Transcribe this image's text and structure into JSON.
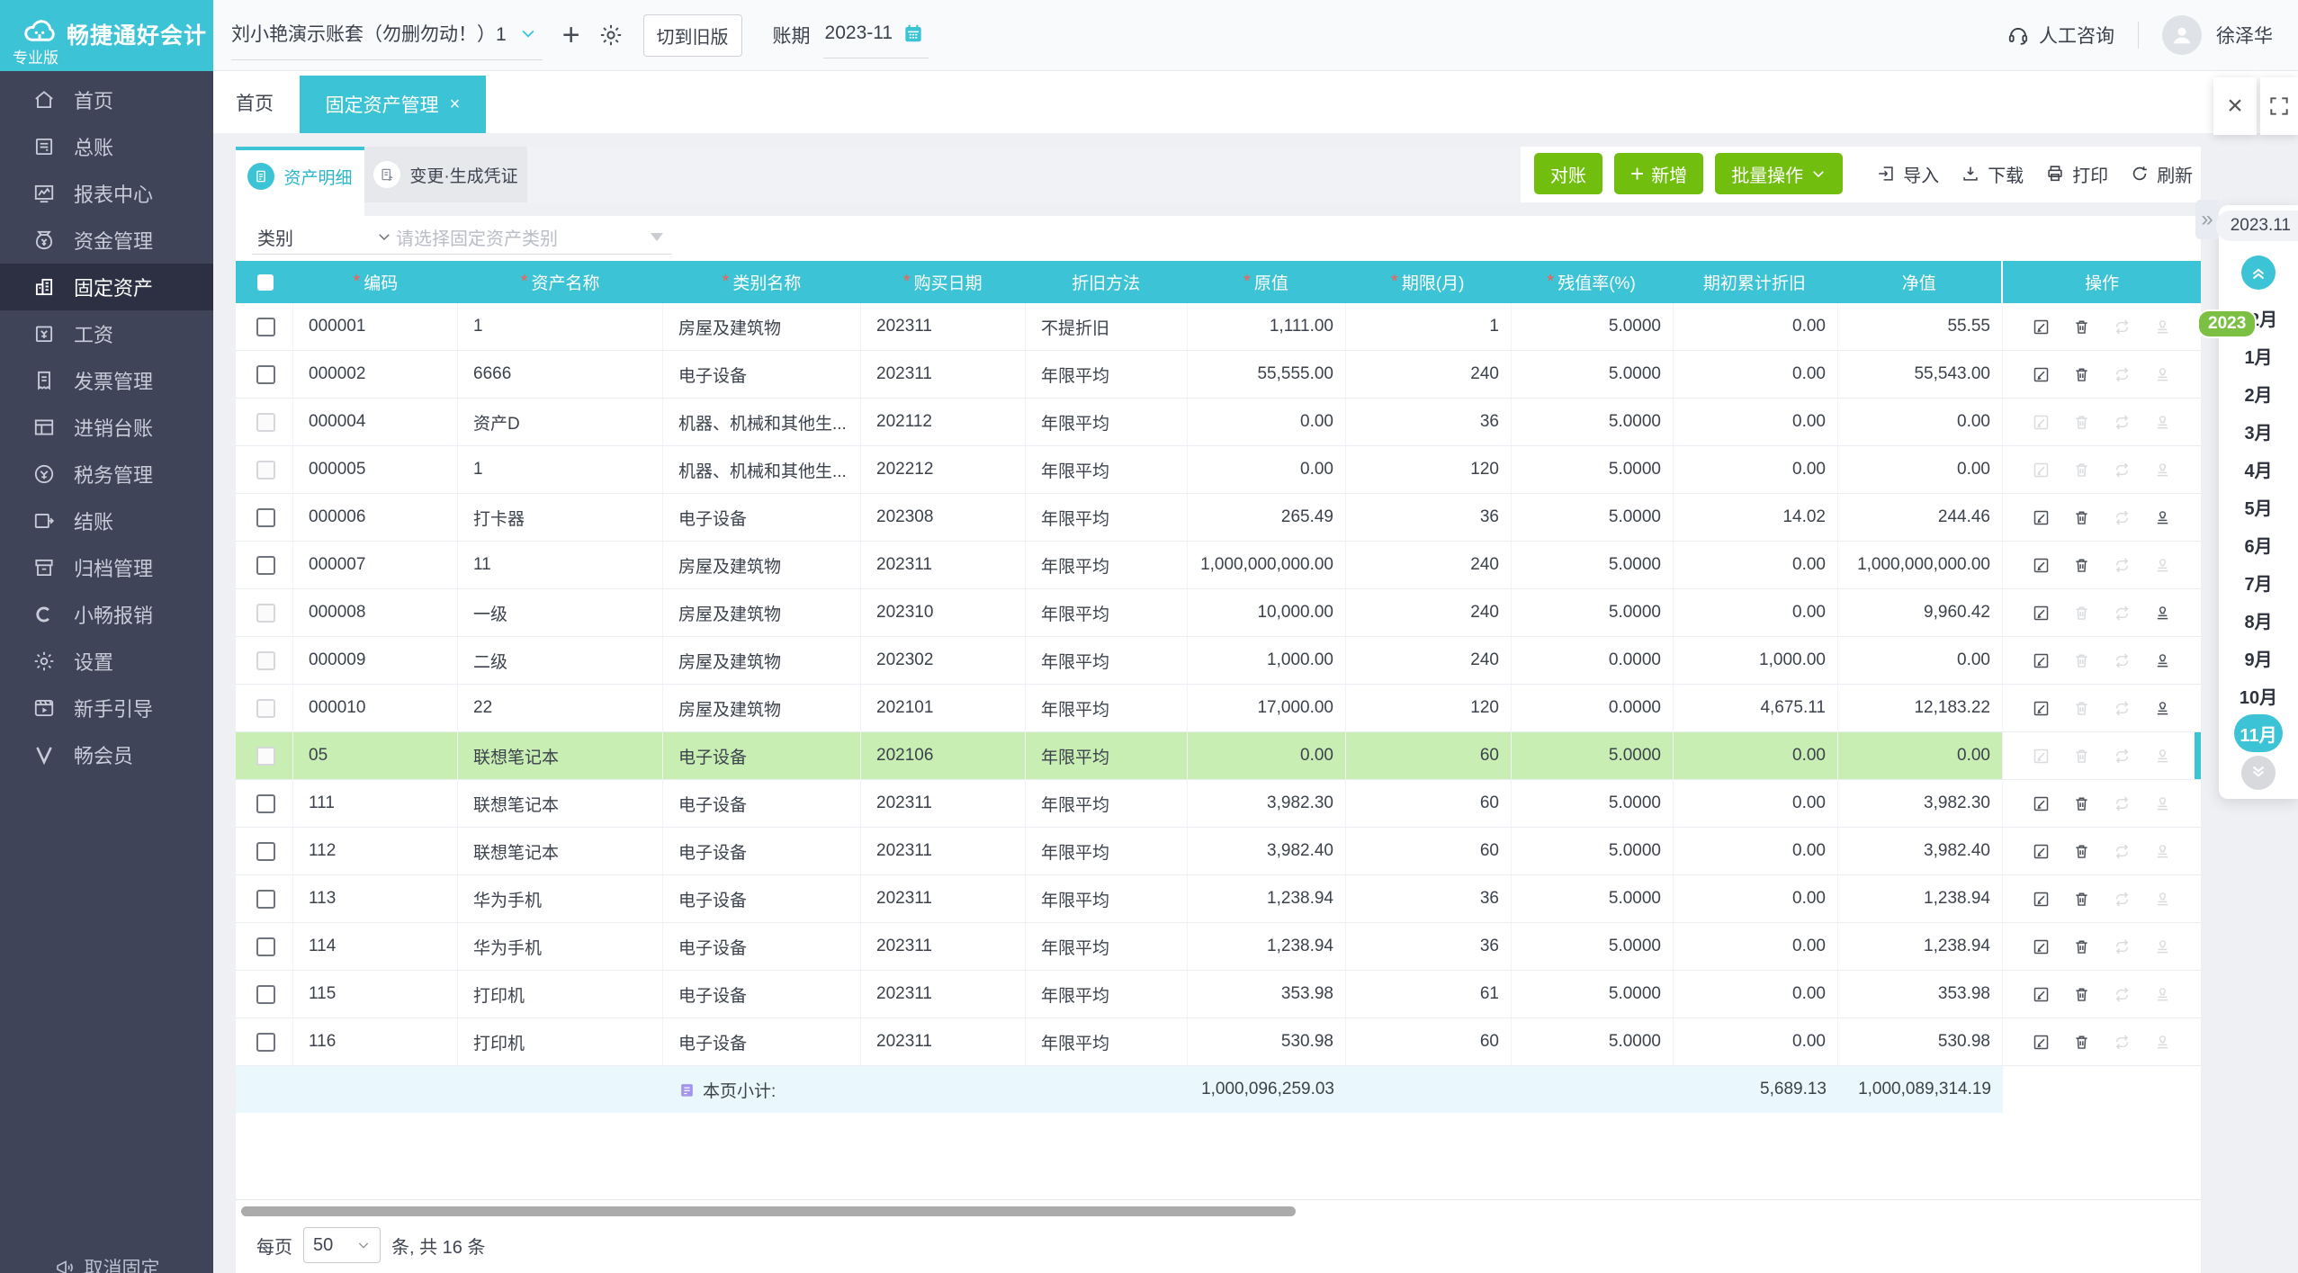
{
  "colors": {
    "primary_teal": "#3cc3d5",
    "button_green": "#72be0e",
    "row_highlight_green": "#c9eeb4",
    "year_badge_green": "#7cc043",
    "sidebar_bg": "#3f4458",
    "required_red": "#ff5a4e",
    "subtotal_bg": "#eaf7fc"
  },
  "icons": {
    "close": "×",
    "collapse": "»",
    "plus": "+",
    "caret": "∨"
  },
  "brand": {
    "name": "畅捷通好会计",
    "edition": "专业版"
  },
  "topbar": {
    "account": "刘小艳演示账套（勿删勿动！）1",
    "switch_old_label": "切到旧版",
    "period_label": "账期",
    "period_value": "2023-11",
    "support_label": "人工咨询",
    "user_name": "徐泽华"
  },
  "tabs": {
    "home_label": "首页",
    "active_label": "固定资产管理"
  },
  "sidebar": {
    "items": [
      {
        "label": "首页",
        "icon": "home-icon",
        "active": false
      },
      {
        "label": "总账",
        "icon": "ledger-icon",
        "active": false
      },
      {
        "label": "报表中心",
        "icon": "report-icon",
        "active": false
      },
      {
        "label": "资金管理",
        "icon": "funds-icon",
        "active": false
      },
      {
        "label": "固定资产",
        "icon": "building-icon",
        "active": true
      },
      {
        "label": "工资",
        "icon": "salary-icon",
        "active": false
      },
      {
        "label": "发票管理",
        "icon": "invoice-icon",
        "active": false
      },
      {
        "label": "进销台账",
        "icon": "daybook-icon",
        "active": false
      },
      {
        "label": "税务管理",
        "icon": "tax-icon",
        "active": false
      },
      {
        "label": "结账",
        "icon": "closing-icon",
        "active": false
      },
      {
        "label": "归档管理",
        "icon": "archive-icon",
        "active": false
      },
      {
        "label": "小畅报销",
        "icon": "reimburse-icon",
        "active": false
      },
      {
        "label": "设置",
        "icon": "gear-icon",
        "active": false
      },
      {
        "label": "新手引导",
        "icon": "guide-icon",
        "active": false
      },
      {
        "label": "畅会员",
        "icon": "member-icon",
        "active": false
      }
    ],
    "bottom_label": "取消固定"
  },
  "subtabs": [
    {
      "label": "资产明细",
      "active": true
    },
    {
      "label": "变更·生成凭证",
      "active": false
    }
  ],
  "toolbar": {
    "reconcile_label": "对账",
    "add_label": "新增",
    "batch_label": "批量操作",
    "import_label": "导入",
    "download_label": "下载",
    "print_label": "打印",
    "refresh_label": "刷新"
  },
  "filters": {
    "category_label": "类别",
    "category_placeholder": "请选择固定资产类别"
  },
  "table": {
    "columns": [
      {
        "key": "code",
        "label": "编码",
        "required": true,
        "align": "txt"
      },
      {
        "key": "name",
        "label": "资产名称",
        "required": true,
        "align": "txt"
      },
      {
        "key": "category",
        "label": "类别名称",
        "required": true,
        "align": "txt"
      },
      {
        "key": "date",
        "label": "购买日期",
        "required": true,
        "align": "txt"
      },
      {
        "key": "method",
        "label": "折旧方法",
        "required": false,
        "align": "txt"
      },
      {
        "key": "original",
        "label": "原值",
        "required": true,
        "align": "num"
      },
      {
        "key": "months",
        "label": "期限(月)",
        "required": true,
        "align": "num"
      },
      {
        "key": "residual",
        "label": "残值率(%)",
        "required": true,
        "align": "num"
      },
      {
        "key": "begin",
        "label": "期初累计折旧",
        "required": false,
        "align": "num"
      },
      {
        "key": "net",
        "label": "净值",
        "required": false,
        "align": "num"
      }
    ],
    "actions_label": "操作",
    "action_icons": [
      "edit",
      "delete",
      "transfer",
      "stamp"
    ],
    "rows": [
      {
        "code": "000001",
        "name": "1",
        "category": "房屋及建筑物",
        "date": "202311",
        "method": "不提折旧",
        "original": "1,111.00",
        "months": "1",
        "residual": "5.0000",
        "begin": "0.00",
        "net": "55.55",
        "cb": true,
        "hl": false,
        "actions": [
          true,
          true,
          false,
          false
        ]
      },
      {
        "code": "000002",
        "name": "6666",
        "category": "电子设备",
        "date": "202311",
        "method": "年限平均",
        "original": "55,555.00",
        "months": "240",
        "residual": "5.0000",
        "begin": "0.00",
        "net": "55,543.00",
        "cb": true,
        "hl": false,
        "actions": [
          true,
          true,
          false,
          false
        ]
      },
      {
        "code": "000004",
        "name": "资产D",
        "category": "机器、机械和其他生...",
        "date": "202112",
        "method": "年限平均",
        "original": "0.00",
        "months": "36",
        "residual": "5.0000",
        "begin": "0.00",
        "net": "0.00",
        "cb": false,
        "hl": false,
        "actions": [
          false,
          false,
          false,
          false
        ]
      },
      {
        "code": "000005",
        "name": "1",
        "category": "机器、机械和其他生...",
        "date": "202212",
        "method": "年限平均",
        "original": "0.00",
        "months": "120",
        "residual": "5.0000",
        "begin": "0.00",
        "net": "0.00",
        "cb": false,
        "hl": false,
        "actions": [
          false,
          false,
          false,
          false
        ]
      },
      {
        "code": "000006",
        "name": "打卡器",
        "category": "电子设备",
        "date": "202308",
        "method": "年限平均",
        "original": "265.49",
        "months": "36",
        "residual": "5.0000",
        "begin": "14.02",
        "net": "244.46",
        "cb": true,
        "hl": false,
        "actions": [
          true,
          true,
          false,
          true
        ]
      },
      {
        "code": "000007",
        "name": "11",
        "category": "房屋及建筑物",
        "date": "202311",
        "method": "年限平均",
        "original": "1,000,000,000.00",
        "months": "240",
        "residual": "5.0000",
        "begin": "0.00",
        "net": "1,000,000,000.00",
        "cb": true,
        "hl": false,
        "actions": [
          true,
          true,
          false,
          false
        ]
      },
      {
        "code": "000008",
        "name": "一级",
        "category": "房屋及建筑物",
        "date": "202310",
        "method": "年限平均",
        "original": "10,000.00",
        "months": "240",
        "residual": "5.0000",
        "begin": "0.00",
        "net": "9,960.42",
        "cb": false,
        "hl": false,
        "actions": [
          true,
          false,
          false,
          true
        ]
      },
      {
        "code": "000009",
        "name": "二级",
        "category": "房屋及建筑物",
        "date": "202302",
        "method": "年限平均",
        "original": "1,000.00",
        "months": "240",
        "residual": "0.0000",
        "begin": "1,000.00",
        "net": "0.00",
        "cb": false,
        "hl": false,
        "actions": [
          true,
          false,
          false,
          true
        ]
      },
      {
        "code": "000010",
        "name": "22",
        "category": "房屋及建筑物",
        "date": "202101",
        "method": "年限平均",
        "original": "17,000.00",
        "months": "120",
        "residual": "0.0000",
        "begin": "4,675.11",
        "net": "12,183.22",
        "cb": false,
        "hl": false,
        "actions": [
          true,
          false,
          false,
          true
        ]
      },
      {
        "code": "05",
        "name": "联想笔记本",
        "category": "电子设备",
        "date": "202106",
        "method": "年限平均",
        "original": "0.00",
        "months": "60",
        "residual": "5.0000",
        "begin": "0.00",
        "net": "0.00",
        "cb": false,
        "hl": true,
        "actions": [
          false,
          false,
          false,
          false
        ]
      },
      {
        "code": "111",
        "name": "联想笔记本",
        "category": "电子设备",
        "date": "202311",
        "method": "年限平均",
        "original": "3,982.30",
        "months": "60",
        "residual": "5.0000",
        "begin": "0.00",
        "net": "3,982.30",
        "cb": true,
        "hl": false,
        "actions": [
          true,
          true,
          false,
          false
        ]
      },
      {
        "code": "112",
        "name": "联想笔记本",
        "category": "电子设备",
        "date": "202311",
        "method": "年限平均",
        "original": "3,982.40",
        "months": "60",
        "residual": "5.0000",
        "begin": "0.00",
        "net": "3,982.40",
        "cb": true,
        "hl": false,
        "actions": [
          true,
          true,
          false,
          false
        ]
      },
      {
        "code": "113",
        "name": "华为手机",
        "category": "电子设备",
        "date": "202311",
        "method": "年限平均",
        "original": "1,238.94",
        "months": "36",
        "residual": "5.0000",
        "begin": "0.00",
        "net": "1,238.94",
        "cb": true,
        "hl": false,
        "actions": [
          true,
          true,
          false,
          false
        ]
      },
      {
        "code": "114",
        "name": "华为手机",
        "category": "电子设备",
        "date": "202311",
        "method": "年限平均",
        "original": "1,238.94",
        "months": "36",
        "residual": "5.0000",
        "begin": "0.00",
        "net": "1,238.94",
        "cb": true,
        "hl": false,
        "actions": [
          true,
          true,
          false,
          false
        ]
      },
      {
        "code": "115",
        "name": "打印机",
        "category": "电子设备",
        "date": "202311",
        "method": "年限平均",
        "original": "353.98",
        "months": "61",
        "residual": "5.0000",
        "begin": "0.00",
        "net": "353.98",
        "cb": true,
        "hl": false,
        "actions": [
          true,
          true,
          false,
          false
        ]
      },
      {
        "code": "116",
        "name": "打印机",
        "category": "电子设备",
        "date": "202311",
        "method": "年限平均",
        "original": "530.98",
        "months": "60",
        "residual": "5.0000",
        "begin": "0.00",
        "net": "530.98",
        "cb": true,
        "hl": false,
        "actions": [
          true,
          true,
          false,
          false
        ]
      }
    ],
    "subtotal": {
      "label": "本页小计:",
      "original": "1,000,096,259.03",
      "begin": "5,689.13",
      "net": "1,000,089,314.19"
    }
  },
  "pagination": {
    "per_page_label": "每页",
    "per_page": "50",
    "suffix": "条, 共 16 条"
  },
  "calendar": {
    "current": "2023.11",
    "year_badge": "2023",
    "months": [
      "12月",
      "1月",
      "2月",
      "3月",
      "4月",
      "5月",
      "6月",
      "7月",
      "8月",
      "9月",
      "10月",
      "11月"
    ],
    "selected": "11月"
  }
}
